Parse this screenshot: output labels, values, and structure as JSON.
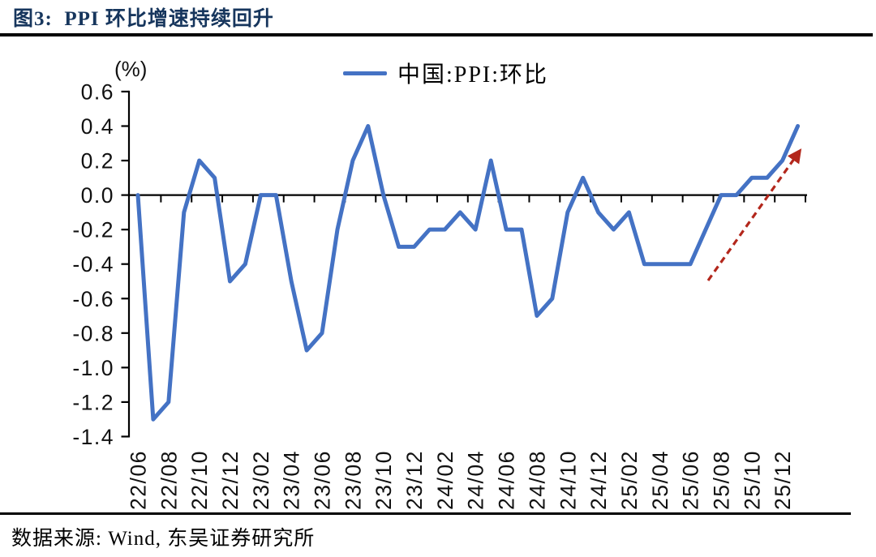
{
  "figure": {
    "title": "图3:  PPI 环比增速持续回升",
    "source": "数据来源: Wind, 东吴证券研究所"
  },
  "chart_data": {
    "type": "line",
    "title": "图3: PPI 环比增速持续回升",
    "legend": "中国:PPI:环比",
    "legend_position": "top-center",
    "unit_label": "(%)",
    "grid": false,
    "ylim": [
      -1.4,
      0.6
    ],
    "ytick_step": 0.2,
    "y_axis_tick_labels": [
      "0.6",
      "0.4",
      "0.2",
      "0.0",
      "-0.2",
      "-0.4",
      "-0.6",
      "-0.8",
      "-1.0",
      "-1.2",
      "-1.4"
    ],
    "x_axis_tick_labels": [
      "22/06",
      "22/08",
      "22/10",
      "22/12",
      "23/02",
      "23/04",
      "23/06",
      "23/08",
      "23/10",
      "23/12",
      "24/02",
      "24/04",
      "24/06",
      "24/08",
      "24/10",
      "24/12",
      "25/02",
      "25/04",
      "25/06",
      "25/08",
      "25/10",
      "25/12"
    ],
    "x": [
      "22/06",
      "22/07",
      "22/08",
      "22/09",
      "22/10",
      "22/11",
      "22/12",
      "23/01",
      "23/02",
      "23/03",
      "23/04",
      "23/05",
      "23/06",
      "23/07",
      "23/08",
      "23/09",
      "23/10",
      "23/11",
      "23/12",
      "24/01",
      "24/02",
      "24/03",
      "24/04",
      "24/05",
      "24/06",
      "24/07",
      "24/08",
      "24/09",
      "24/10",
      "24/11",
      "24/12",
      "25/01",
      "25/02",
      "25/03",
      "25/04",
      "25/05",
      "25/06",
      "25/07",
      "25/08",
      "25/09",
      "25/10",
      "25/11",
      "25/12",
      "26/01"
    ],
    "series": [
      {
        "name": "中国:PPI:环比",
        "color": "#4472C4",
        "values": [
          0.0,
          -1.3,
          -1.2,
          -0.1,
          0.2,
          0.1,
          -0.5,
          -0.4,
          0.0,
          0.0,
          -0.5,
          -0.9,
          -0.8,
          -0.2,
          0.2,
          0.4,
          0.0,
          -0.3,
          -0.3,
          -0.2,
          -0.2,
          -0.1,
          -0.2,
          0.2,
          -0.2,
          -0.2,
          -0.7,
          -0.6,
          -0.1,
          0.1,
          -0.1,
          -0.2,
          -0.1,
          -0.4,
          -0.4,
          -0.4,
          -0.4,
          -0.2,
          0.0,
          0.0,
          0.1,
          0.1,
          0.2,
          0.4
        ]
      }
    ],
    "trend_arrow": {
      "style": "dashed",
      "color": "#B3271C",
      "direction": "up-right"
    }
  }
}
